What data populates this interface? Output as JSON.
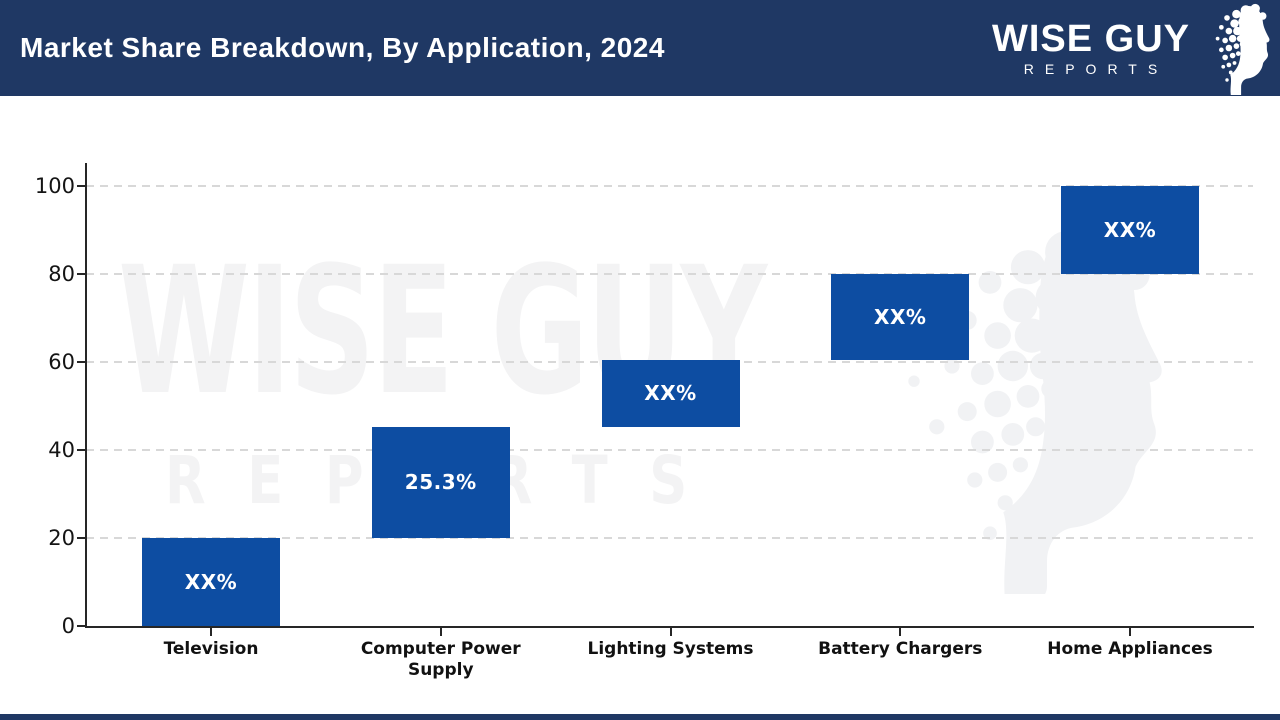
{
  "header": {
    "title": "Market Share Breakdown, By Application, 2024",
    "bg_color": "#1f3864",
    "logo": {
      "line1": "WISE GUY",
      "line2": "REPORTS"
    }
  },
  "watermark": {
    "line1": "WISE GUY",
    "line2": "REPORTS"
  },
  "chart_data": {
    "type": "bar",
    "subtype": "waterfall",
    "title": "Market Share Breakdown, By Application, 2024",
    "categories": [
      "Television",
      "Computer Power Supply",
      "Lighting Systems",
      "Battery Chargers",
      "Home Appliances"
    ],
    "segments": [
      {
        "start": 0,
        "end": 20,
        "label": "XX%"
      },
      {
        "start": 20,
        "end": 45.3,
        "label": "25.3%"
      },
      {
        "start": 45.3,
        "end": 60.5,
        "label": "XX%"
      },
      {
        "start": 60.5,
        "end": 80,
        "label": "XX%"
      },
      {
        "start": 80,
        "end": 100,
        "label": "XX%"
      }
    ],
    "values": [
      20,
      25.3,
      15.2,
      19.5,
      20
    ],
    "xlabel": "",
    "ylabel": "",
    "yticks": [
      0,
      20,
      40,
      60,
      80,
      100
    ],
    "ylim": [
      0,
      105
    ],
    "grid": true,
    "gridline_style": "dashed",
    "legend": "none",
    "bar_color": "#0d4da2",
    "axis_color": "#262626",
    "grid_color": "#d8d8d8"
  }
}
